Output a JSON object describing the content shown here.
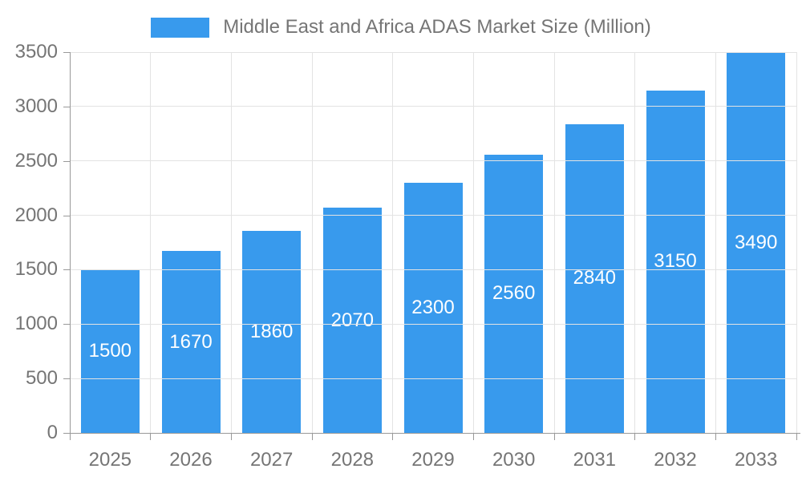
{
  "chart_data": {
    "type": "bar",
    "title": "Middle East and Africa ADAS Market Size (Million)",
    "series_name": "Middle East and Africa ADAS Market Size (Million)",
    "categories": [
      "2025",
      "2026",
      "2027",
      "2028",
      "2029",
      "2030",
      "2031",
      "2032",
      "2033"
    ],
    "values": [
      1500,
      1670,
      1860,
      2070,
      2300,
      2560,
      2840,
      3150,
      3490
    ],
    "xlabel": "",
    "ylabel": "",
    "ylim": [
      0,
      3500
    ],
    "yticks": [
      0,
      500,
      1000,
      1500,
      2000,
      2500,
      3000,
      3500
    ],
    "grid": true,
    "legend_position": "top",
    "value_labels_visible": true,
    "colors": {
      "bar": "#389AED",
      "grid": "#E3E3E3",
      "axis": "#999999",
      "tick_label": "#757575",
      "title": "#757575",
      "value_label": "#FFFFFF"
    }
  }
}
